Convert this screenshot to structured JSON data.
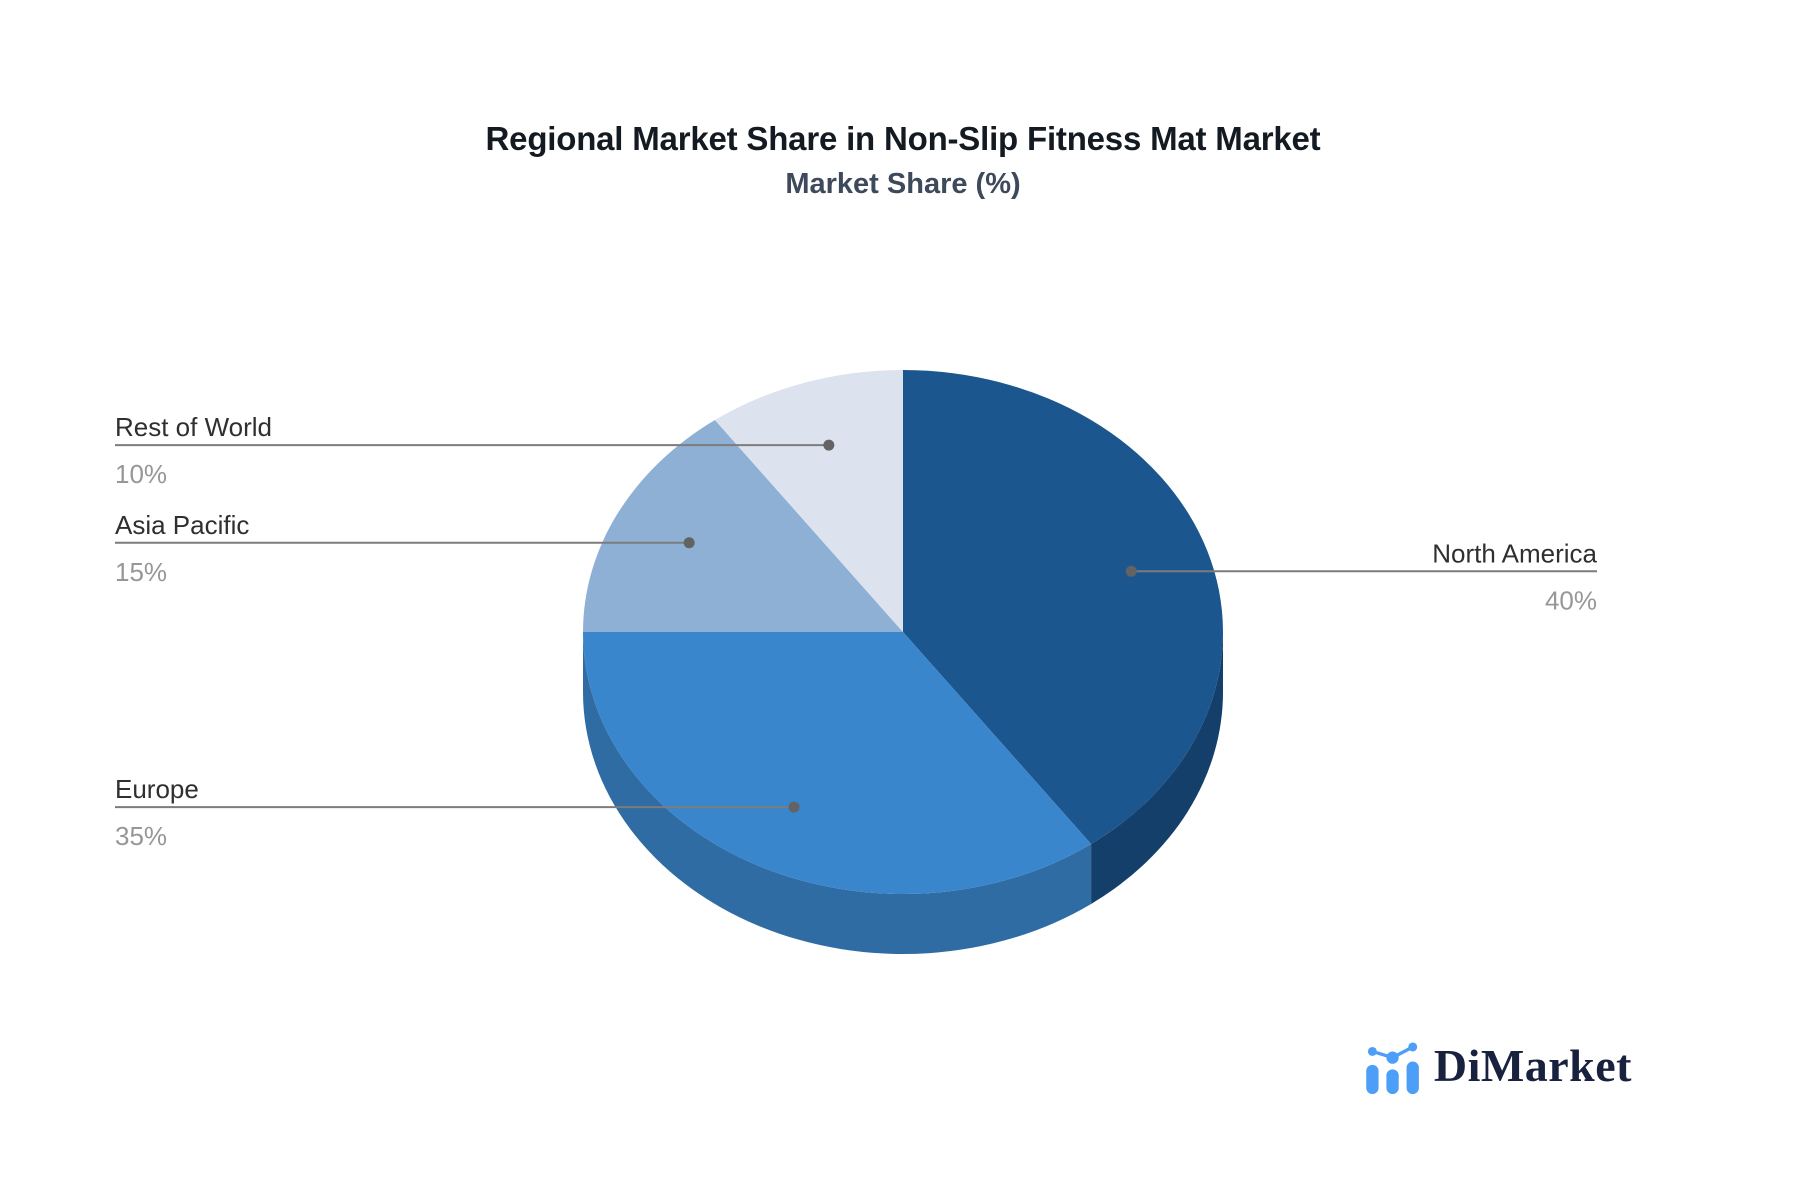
{
  "branding": {
    "name": "DiMarket"
  },
  "colors": {
    "background": "#ffffff",
    "title_text": "#141a22",
    "subtitle_text": "#3e4a5b",
    "brand_text": "#18223e",
    "brand_blue": "#4d9ef6"
  },
  "chart_data": {
    "type": "pie",
    "style": "3d",
    "title": "Regional Market Share in Non-Slip Fitness Mat Market",
    "subtitle": "Market Share (%)",
    "unit": "%",
    "start_angle_deg": 0,
    "direction": "clockwise",
    "labels": "callout",
    "legend": false,
    "label_color": "#2f2f2f",
    "value_color": "#979797",
    "line_color": "#7c7c7c",
    "dot_color": "#636363",
    "slices": [
      {
        "id": "north-america",
        "label": "North America",
        "value": 40,
        "color": "#1c568e",
        "shade": "#143f6a"
      },
      {
        "id": "europe",
        "label": "Europe",
        "value": 35,
        "color": "#3a86cc",
        "shade": "#2e6ca3"
      },
      {
        "id": "asia-pacific",
        "label": "Asia Pacific",
        "value": 15,
        "color": "#8fb0d5",
        "shade": "#6d8fb8"
      },
      {
        "id": "rest-of-world",
        "label": "Rest of World",
        "value": 10,
        "color": "#dce3ef",
        "shade": "#b4c0d4"
      }
    ]
  }
}
